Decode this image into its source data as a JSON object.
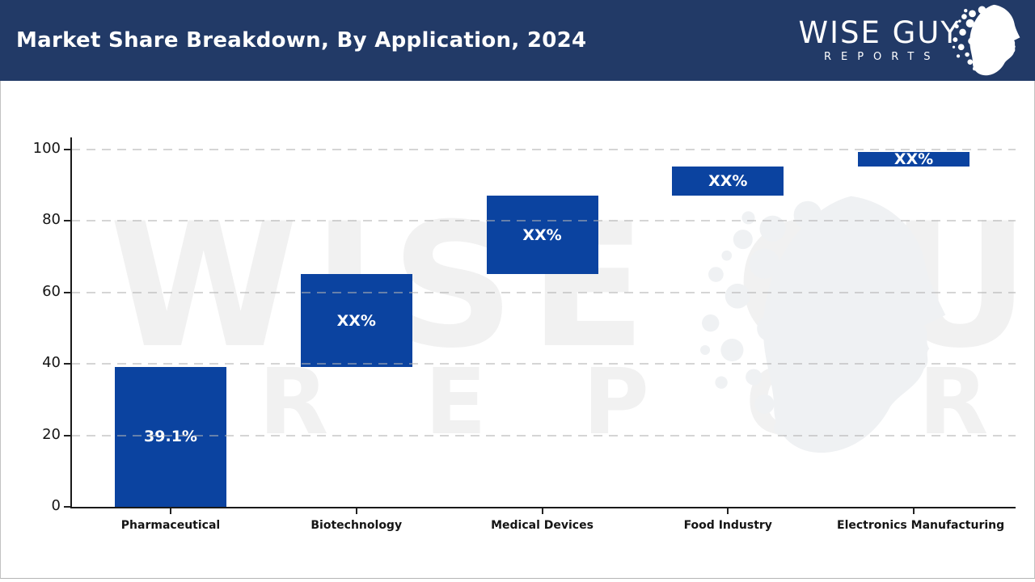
{
  "header": {
    "title": "Market Share Breakdown, By Application, 2024",
    "bg_color": "#223a67",
    "logo": {
      "line1": "WISE GUY",
      "line2": "REPORTS",
      "face_icon": "dotted-head-profile"
    }
  },
  "watermark": {
    "line1": "WISE GU",
    "line2": "R E P O R T S"
  },
  "chart_data": {
    "type": "bar",
    "subtype": "waterfall-stacked-percent",
    "title": "Market Share Breakdown, By Application, 2024",
    "categories": [
      "Pharmaceutical",
      "Biotechnology",
      "Medical Devices",
      "Food Industry",
      "Electronics Manufacturing"
    ],
    "segments": [
      {
        "category": "Pharmaceutical",
        "start": 0,
        "end": 39.1,
        "label": "39.1%"
      },
      {
        "category": "Biotechnology",
        "start": 39.1,
        "end": 65.0,
        "label": "XX%"
      },
      {
        "category": "Medical Devices",
        "start": 65.0,
        "end": 86.9,
        "label": "XX%"
      },
      {
        "category": "Food Industry",
        "start": 86.9,
        "end": 95.2,
        "label": "XX%"
      },
      {
        "category": "Electronics Manufacturing",
        "start": 95.2,
        "end": 99.3,
        "label": "XX%"
      }
    ],
    "yticks": [
      0,
      20,
      40,
      60,
      80,
      100
    ],
    "ylim": [
      0,
      103
    ],
    "xlabel": "",
    "ylabel": "",
    "grid": "horizontal-dashed",
    "legend": "none",
    "bar_color": "#0b43a0",
    "bar_label_color": "#ffffff",
    "axis_color": "#1a1a1a",
    "gridline_color": "#bdbdbd"
  }
}
